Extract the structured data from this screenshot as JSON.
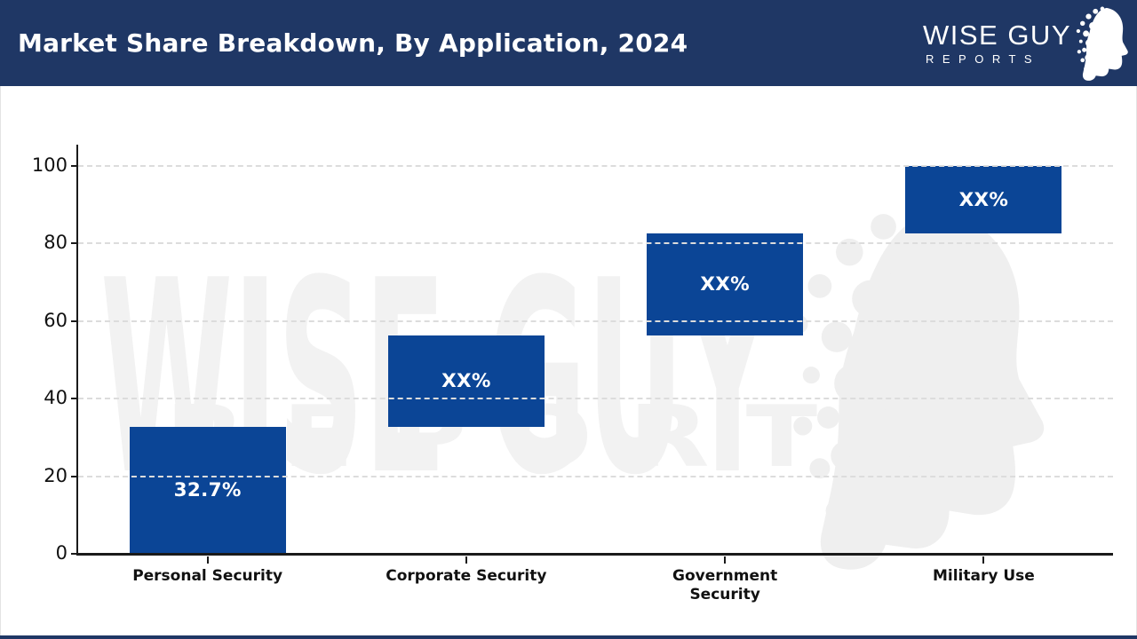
{
  "header": {
    "title": "Market Share Breakdown, By Application, 2024",
    "logo": {
      "wordmark": "WISE GUY",
      "sub": "REPORTS"
    }
  },
  "watermark": {
    "wordmark": "WISE GUY",
    "sub": "R E P O R T S"
  },
  "colors": {
    "header_bg": "#1f3765",
    "bar_blue": "#0b4596",
    "grid_line": "#dcdcdc",
    "axis": "#1a1a1a",
    "watermark": "#f2f2f2"
  },
  "chart_data": {
    "type": "bar",
    "subtype": "waterfall-floating-bars",
    "title": "Market Share Breakdown, By Application, 2024",
    "categories": [
      "Personal Security",
      "Corporate Security",
      "Government\nSecurity",
      "Military Use"
    ],
    "series": [
      {
        "name": "Market Share",
        "segments": [
          [
            0,
            32.7
          ],
          [
            32.7,
            56.4
          ],
          [
            56.4,
            82.6
          ],
          [
            82.6,
            100
          ]
        ]
      }
    ],
    "bar_labels": [
      "32.7%",
      "XX%",
      "XX%",
      "XX%"
    ],
    "xlabel": "",
    "ylabel": "",
    "ylim": [
      0,
      100
    ],
    "yticks": [
      0,
      20,
      40,
      60,
      80,
      100
    ],
    "grid": "horizontal-dashed",
    "legend": "none"
  }
}
